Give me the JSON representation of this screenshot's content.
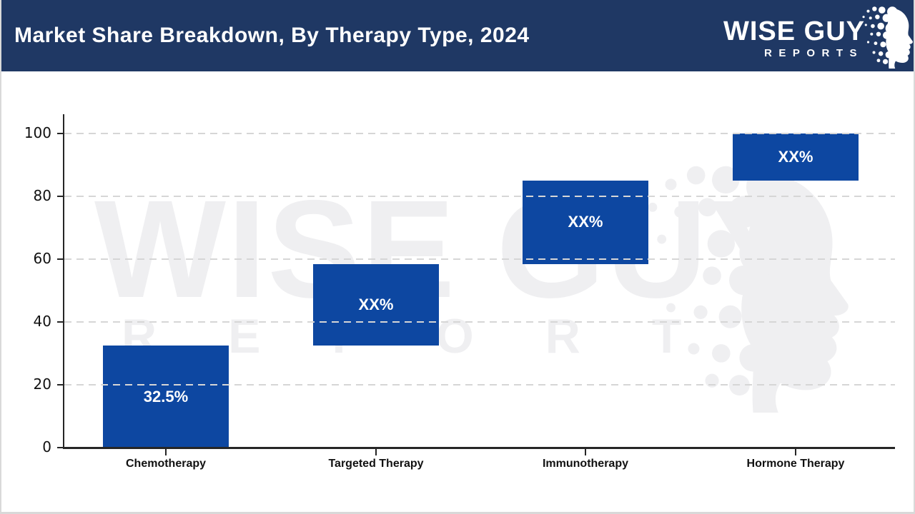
{
  "header": {
    "title": "Market Share Breakdown, By Therapy Type, 2024"
  },
  "logo": {
    "line1": "WISE GUY",
    "line2": "REPORTS"
  },
  "watermark": {
    "line1": "WISE GUY",
    "line2": "REPORTS"
  },
  "chart_data": {
    "type": "bar",
    "subtype": "waterfall",
    "title": "Market Share Breakdown, By Therapy Type, 2024",
    "categories": [
      "Chemotherapy",
      "Targeted Therapy",
      "Immunotherapy",
      "Hormone Therapy"
    ],
    "segments": [
      {
        "category": "Chemotherapy",
        "start": 0,
        "end": 32.5,
        "label": "32.5%"
      },
      {
        "category": "Targeted Therapy",
        "start": 32.5,
        "end": 58.5,
        "label": "XX%"
      },
      {
        "category": "Immunotherapy",
        "start": 58.5,
        "end": 85,
        "label": "XX%"
      },
      {
        "category": "Hormone Therapy",
        "start": 85,
        "end": 100,
        "label": "XX%"
      }
    ],
    "yticks": [
      0,
      20,
      40,
      60,
      80,
      100
    ],
    "ylim": [
      0,
      106
    ],
    "xlabel": "",
    "ylabel": "",
    "grid": {
      "axis": "y",
      "style": "dashed",
      "drawn_above_bars": true
    },
    "legend": null,
    "colors": {
      "header_bg": "#1f3864",
      "bar": "#0d47a1",
      "bar_label": "#ffffff",
      "watermark": "#efeff1",
      "gridline": "#d6d6d6",
      "axis": "#262626",
      "tick_label": "#111111"
    }
  }
}
